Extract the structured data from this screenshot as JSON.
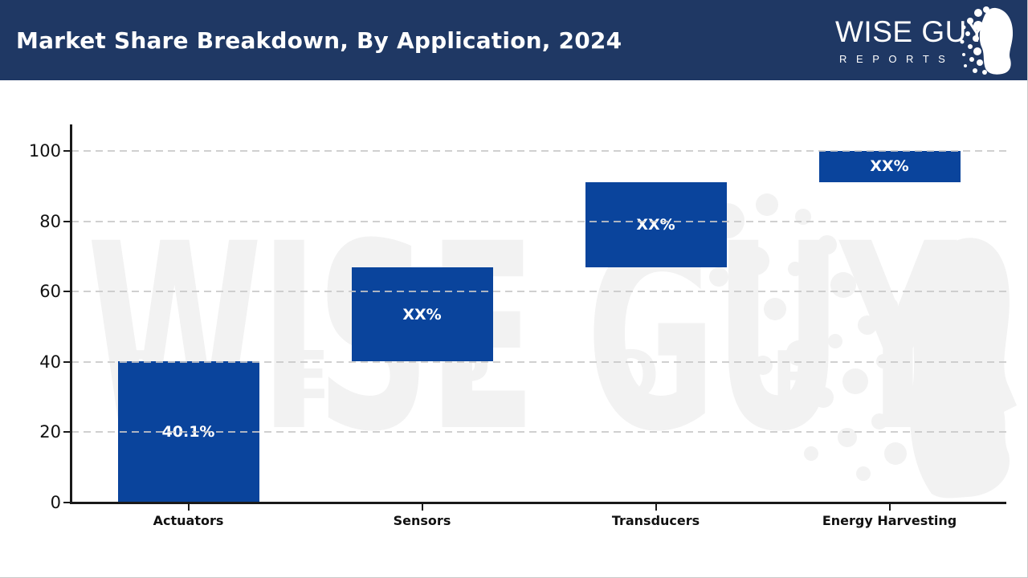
{
  "header": {
    "title": "Market Share Breakdown, By Application, 2024",
    "brand_line1": "WISE GUY",
    "brand_line2": "R E P O R T S"
  },
  "watermark": {
    "line1": "WISE GUY",
    "line2": "R E P O R T S"
  },
  "chart_data": {
    "type": "bar",
    "subtype": "waterfall",
    "title": "Market Share Breakdown, By Application, 2024",
    "categories": [
      "Actuators",
      "Sensors",
      "Transducers",
      "Energy Harvesting"
    ],
    "segments": [
      {
        "category": "Actuators",
        "start": 0,
        "end": 40.1,
        "label": "40.1%"
      },
      {
        "category": "Sensors",
        "start": 40.1,
        "end": 66.8,
        "label": "XX%"
      },
      {
        "category": "Transducers",
        "start": 66.8,
        "end": 91.2,
        "label": "XX%"
      },
      {
        "category": "Energy Harvesting",
        "start": 91.2,
        "end": 100,
        "label": "XX%"
      }
    ],
    "ylim": [
      0,
      105
    ],
    "yticks": [
      0,
      20,
      40,
      60,
      80,
      100
    ],
    "grid": "horizontal dashed, drawn over bars",
    "legend": "none",
    "bar_color": "#0a449c",
    "bar_label_color": "#ffffff"
  },
  "colors": {
    "header_bg": "#1f3864",
    "header_text": "#ffffff",
    "bar": "#0a449c",
    "axis": "#1a1a1a",
    "gridline": "#c8c8c8",
    "watermark": "#f2f2f2",
    "page_border": "#c9c9c9"
  }
}
